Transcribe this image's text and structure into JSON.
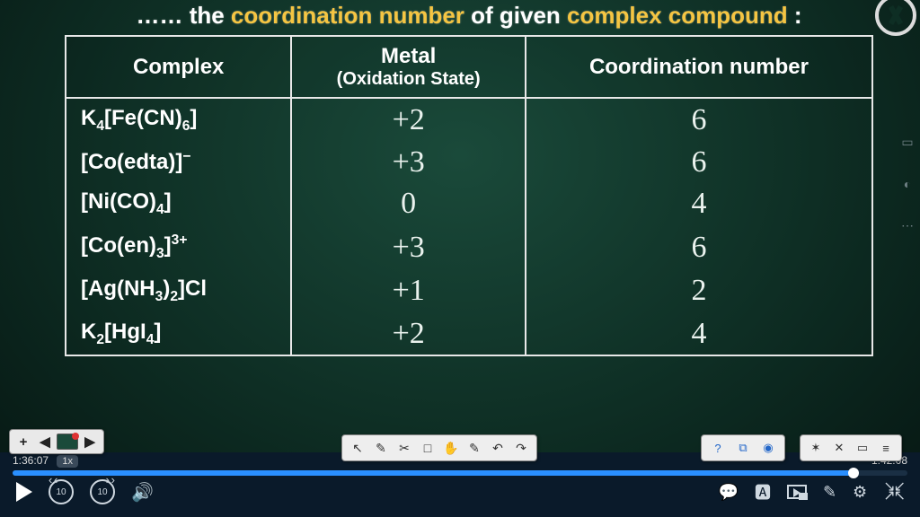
{
  "title_plain": "…… the ",
  "title_hl1": "coordination number",
  "title_mid": " of given ",
  "title_hl2": "complex compound",
  "title_end": " :",
  "table": {
    "headers": {
      "complex": "Complex",
      "metal": "Metal",
      "metal_sub": "(Oxidation State)",
      "cn": "Coordination number"
    },
    "rows": [
      {
        "complex_html": "K<sub>4</sub>[Fe(CN)<sub>6</sub>]",
        "ox": "+2",
        "cn": "6"
      },
      {
        "complex_html": "[Co(edta)]<sup>−</sup>",
        "ox": "+3",
        "cn": "6"
      },
      {
        "complex_html": "[Ni(CO)<sub>4</sub>]",
        "ox": "0",
        "cn": "4"
      },
      {
        "complex_html": "[Co(en)<sub>3</sub>]<sup>3+</sup>",
        "ox": "+3",
        "cn": "6"
      },
      {
        "complex_html": "[Ag(NH<sub>3</sub>)<sub>2</sub>]Cl",
        "ox": "+1",
        "cn": "2"
      },
      {
        "complex_html": "K<sub>2</sub>[HgI<sub>4</sub>]",
        "ox": "+2",
        "cn": "4"
      }
    ]
  },
  "toolbar_left": {
    "plus": "+",
    "prev": "◀",
    "next": "▶"
  },
  "toolbar_center": [
    "↖",
    "✎",
    "✂",
    "□",
    "✋",
    "✎",
    "↶",
    "↷"
  ],
  "toolbar_right": [
    "?",
    "⧉",
    "◉"
  ],
  "toolbar_far": [
    "✶",
    "✕",
    "▭",
    "≡"
  ],
  "player": {
    "elapsed": "1:36:07",
    "speed": "1x",
    "total": "1:42:08",
    "progress_pct": 94,
    "skip_label": "10",
    "right_icons": {
      "chat": "💬",
      "cc": "🅰",
      "notes": "✎",
      "gear": "⚙"
    }
  }
}
